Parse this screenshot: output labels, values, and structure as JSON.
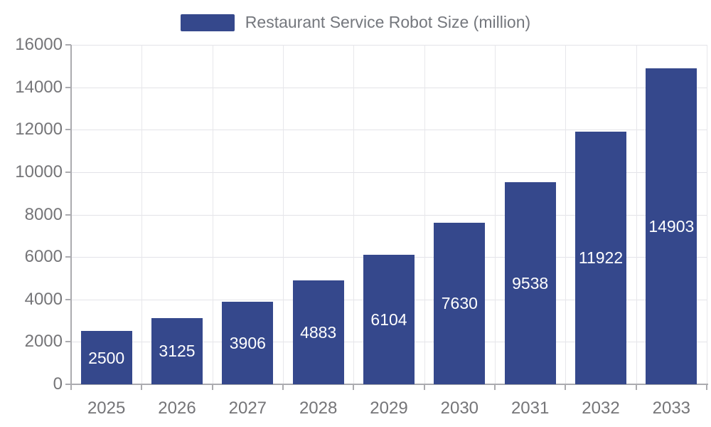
{
  "legend": {
    "label": "Restaurant Service Robot Size (million)"
  },
  "chart_data": {
    "type": "bar",
    "title": "Restaurant Service Robot Size (million)",
    "categories": [
      "2025",
      "2026",
      "2027",
      "2028",
      "2029",
      "2030",
      "2031",
      "2032",
      "2033"
    ],
    "values": [
      2500,
      3125,
      3906,
      4883,
      6104,
      7630,
      9538,
      11922,
      14903
    ],
    "series": [
      {
        "name": "Restaurant Service Robot Size (million)",
        "values": [
          2500,
          3125,
          3906,
          4883,
          6104,
          7630,
          9538,
          11922,
          14903
        ]
      }
    ],
    "xlabel": "",
    "ylabel": "",
    "ylim": [
      0,
      16000
    ],
    "ytick_step": 2000,
    "yticks": [
      0,
      2000,
      4000,
      6000,
      8000,
      10000,
      12000,
      14000,
      16000
    ],
    "grid": true,
    "legend_position": "top",
    "bar_labels_position": "inside-center",
    "bar_color": "#35488C",
    "bar_label_color": "#FFFFFF",
    "axis_text_color": "#757578",
    "axis_line_color": "#ABABAF",
    "gridline_color": "#E3E3E8"
  }
}
